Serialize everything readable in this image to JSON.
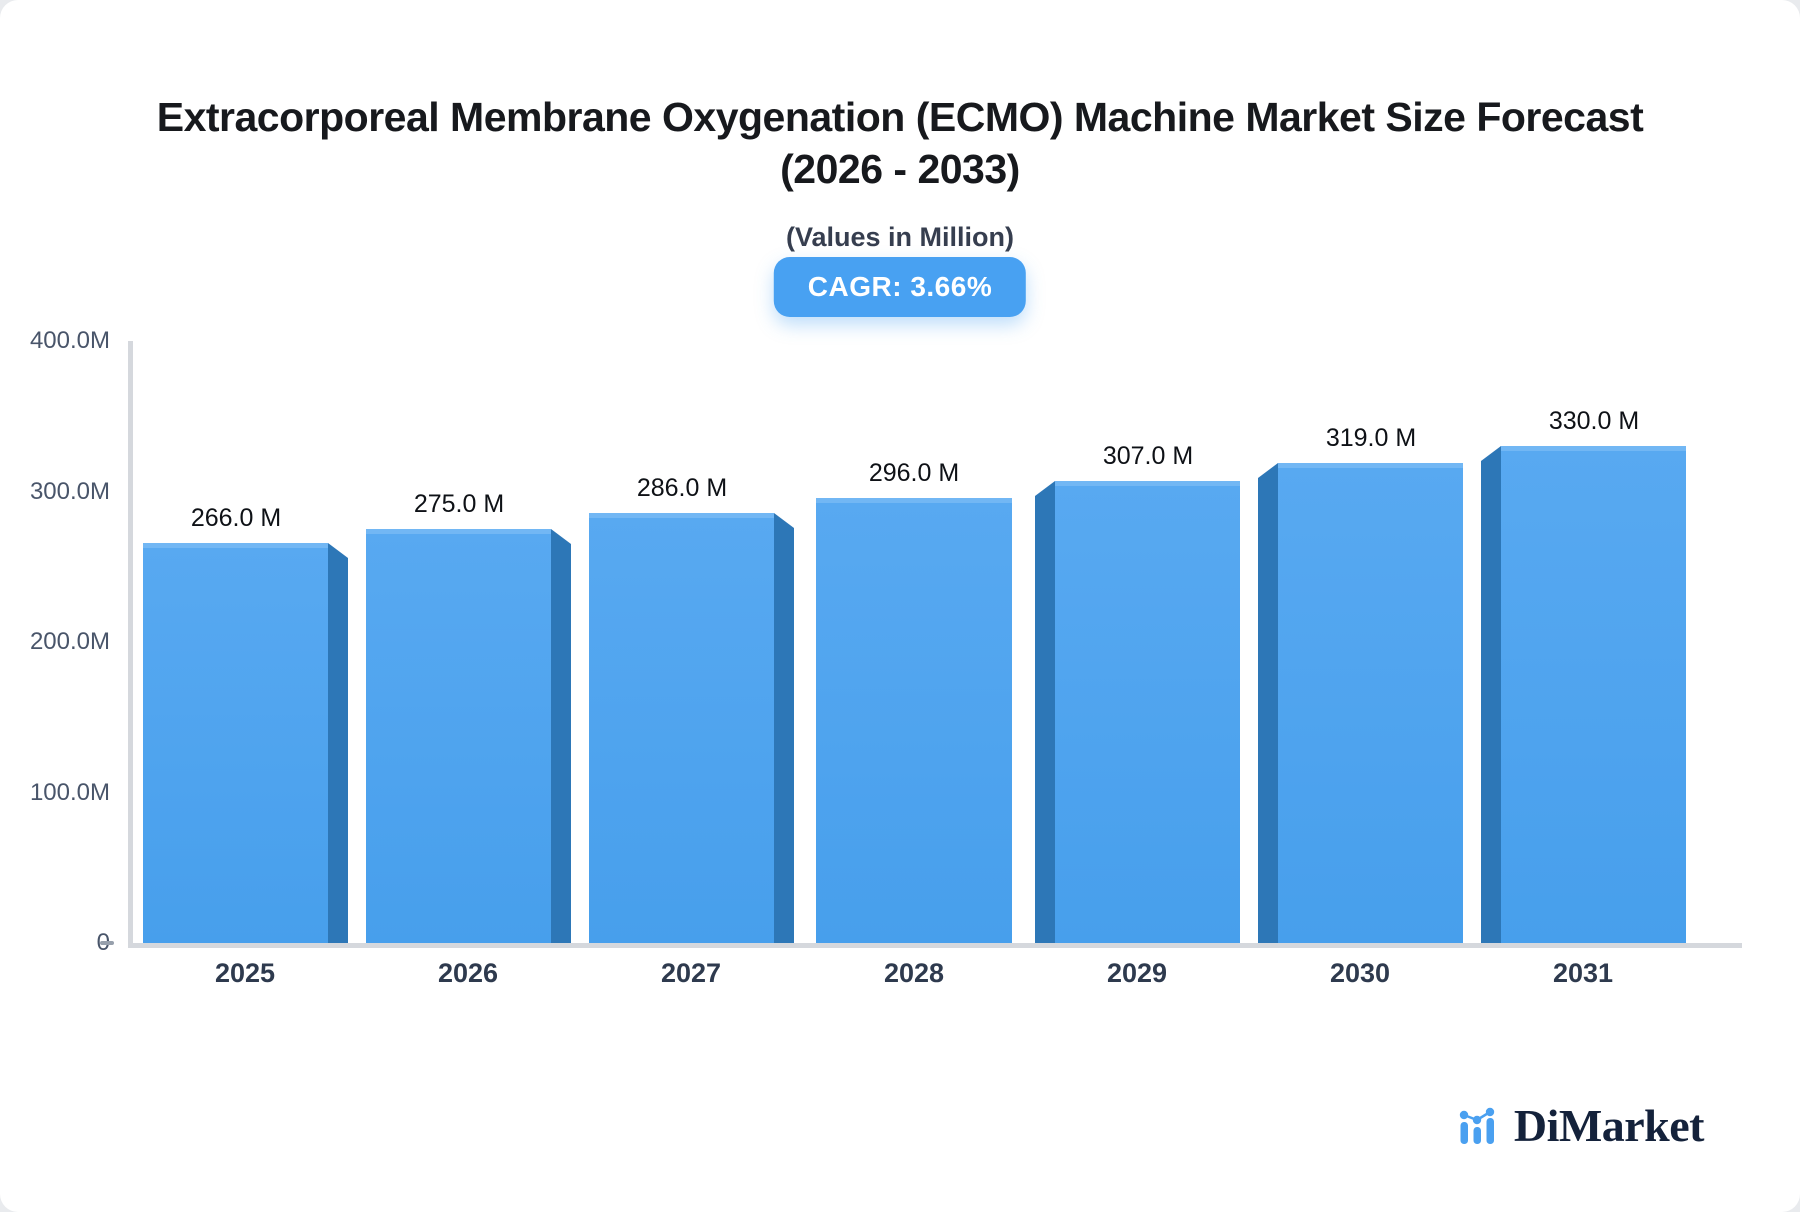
{
  "header": {
    "title_line1": "Extracorporeal Membrane Oxygenation (ECMO) Machine Market Size Forecast",
    "title_line2": "(2026 - 2033)",
    "subtitle": "(Values in Million)",
    "cagr_badge": "CAGR: 3.66%",
    "badge_color": "#48a1f2"
  },
  "chart_data": {
    "type": "bar",
    "title": "Extracorporeal Membrane Oxygenation (ECMO) Machine Market Size Forecast (2026 - 2033)",
    "subtitle": "(Values in Million)",
    "units": "Million",
    "categories": [
      "2025",
      "2026",
      "2027",
      "2028",
      "2029",
      "2030",
      "2031"
    ],
    "values": [
      266,
      275,
      286,
      296,
      307,
      319,
      330
    ],
    "value_labels": [
      "266.0 M",
      "275.0 M",
      "286.0 M",
      "296.0 M",
      "307.0 M",
      "319.0 M",
      "330.0 M"
    ],
    "xlabel": "",
    "ylabel": "",
    "ylim": [
      0,
      400
    ],
    "yticks": [
      {
        "value": 400,
        "label": "400.0M"
      },
      {
        "value": 300,
        "label": "300.0M"
      },
      {
        "value": 200,
        "label": "200.0M"
      },
      {
        "value": 100,
        "label": "100.0M"
      },
      {
        "value": 0,
        "label": "0"
      }
    ],
    "grid": false,
    "legend": false,
    "bar_color_top": "#58a9f1",
    "bar_color_bottom": "#479fec",
    "bar_highlight_color": "#72b7f4",
    "bar_side_color": "#2d77b7",
    "axis_color": "#d5d8dd"
  },
  "footer": {
    "brand": "DiMarket",
    "brand_color": "#14223b",
    "icon_color": "#4aa0f0"
  }
}
